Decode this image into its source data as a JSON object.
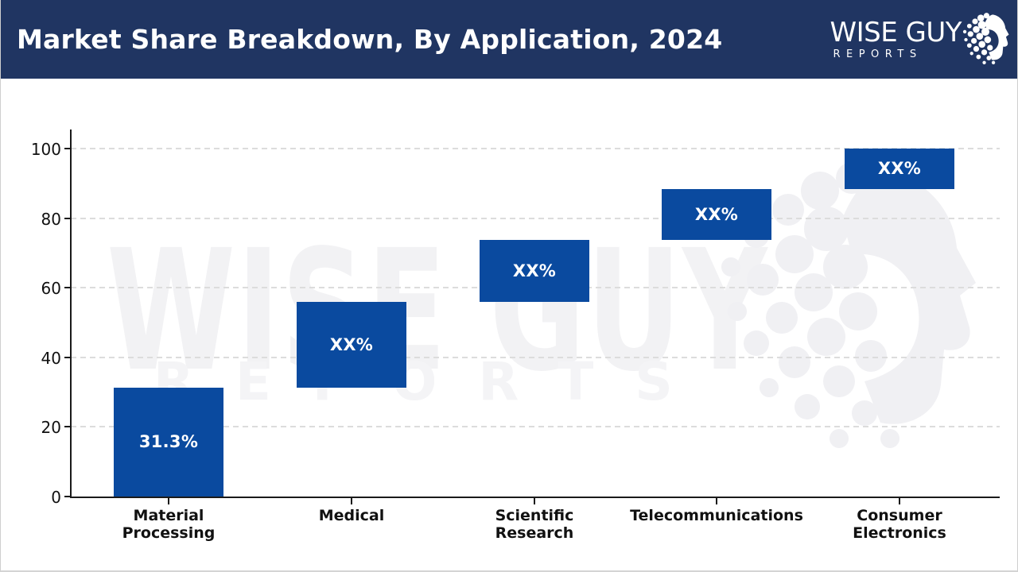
{
  "header": {
    "title": "Market Share Breakdown, By Application, 2024",
    "bg_color": "#203562",
    "logo": {
      "wordmark": "WISE GUY",
      "subtext": "REPORTS"
    }
  },
  "watermark": {
    "line1": "WISE GUY",
    "line2": "REPORTS"
  },
  "chart_data": {
    "type": "bar",
    "subtype": "waterfall",
    "title": "Market Share Breakdown, By Application, 2024",
    "categories": [
      "Material Processing",
      "Medical",
      "Scientific Research",
      "Telecommunications",
      "Consumer Electronics"
    ],
    "category_lines": [
      [
        "Material",
        "Processing"
      ],
      [
        "Medical"
      ],
      [
        "Scientific",
        "Research"
      ],
      [
        "Telecommunications"
      ],
      [
        "Consumer",
        "Electronics"
      ]
    ],
    "segments": [
      {
        "category": "Material Processing",
        "start": 0,
        "end": 31.3,
        "value_label": "31.3%"
      },
      {
        "category": "Medical",
        "start": 31.3,
        "end": 55.9,
        "value_label": "XX%"
      },
      {
        "category": "Scientific Research",
        "start": 55.9,
        "end": 73.7,
        "value_label": "XX%"
      },
      {
        "category": "Telecommunications",
        "start": 73.7,
        "end": 88.4,
        "value_label": "XX%"
      },
      {
        "category": "Consumer Electronics",
        "start": 88.4,
        "end": 100,
        "value_label": "XX%"
      }
    ],
    "y_ticks": [
      0,
      20,
      40,
      60,
      80,
      100
    ],
    "ylim": [
      0,
      105.5
    ],
    "grid": "dashed-horizontal",
    "legend": "none",
    "bar_color": "#0a4a9f",
    "value_label_color": "#ffffff",
    "axis_color": "#1a1a1a"
  }
}
